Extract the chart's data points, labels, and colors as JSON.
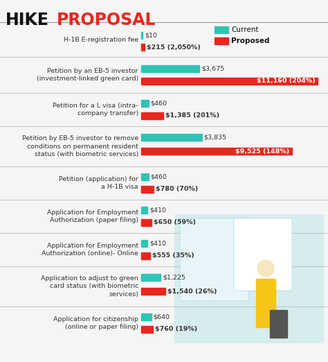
{
  "title_hike": "HIKE",
  "title_proposal": "PROPOSAL",
  "background_color": "#f5f5f5",
  "cyan_color": "#2ec4b6",
  "red_color": "#e8271e",
  "title_hike_color": "#111111",
  "title_proposal_color": "#e8271e",
  "bar_max": 11160,
  "rows": [
    {
      "label": "H-1B E-registration fee",
      "current_val": 10,
      "proposed_val": 215,
      "current_label": "$10",
      "proposed_label": "$215 (2,050%)"
    },
    {
      "label": "Petition by an EB-5 investor\n(investment-linked green card)",
      "current_val": 3675,
      "proposed_val": 11160,
      "current_label": "$3,675",
      "proposed_label": "$11,160 (204%)"
    },
    {
      "label": "Petition for a L visa (intra-\ncompany transfer)",
      "current_val": 460,
      "proposed_val": 1385,
      "current_label": "$460",
      "proposed_label": "$1,385 (201%)"
    },
    {
      "label": "Petition by EB-5 investor to remove\nconditions on permanent resident\nstatus (with biometric services)",
      "current_val": 3835,
      "proposed_val": 9525,
      "current_label": "$3,835",
      "proposed_label": "$9,525 (148%)"
    },
    {
      "label": "Petition (application) for\na H-1B visa",
      "current_val": 460,
      "proposed_val": 780,
      "current_label": "$460",
      "proposed_label": "$780 (70%)"
    },
    {
      "label": "Application for Employment\nAuthorization (paper filing)",
      "current_val": 410,
      "proposed_val": 650,
      "current_label": "$410",
      "proposed_label": "$650 (59%)"
    },
    {
      "label": "Application for Employment\nAuthorization (online)- Online",
      "current_val": 410,
      "proposed_val": 555,
      "current_label": "$410",
      "proposed_label": "$555 (35%)"
    },
    {
      "label": "Application to adjust to green\ncard status (with biometric\nservices)",
      "current_val": 1225,
      "proposed_val": 1540,
      "current_label": "$1,225",
      "proposed_label": "$1,540 (26%)"
    },
    {
      "label": "Application for citizenship\n(online or paper filing)",
      "current_val": 640,
      "proposed_val": 760,
      "current_label": "$640",
      "proposed_label": "$760 (19%)"
    }
  ]
}
